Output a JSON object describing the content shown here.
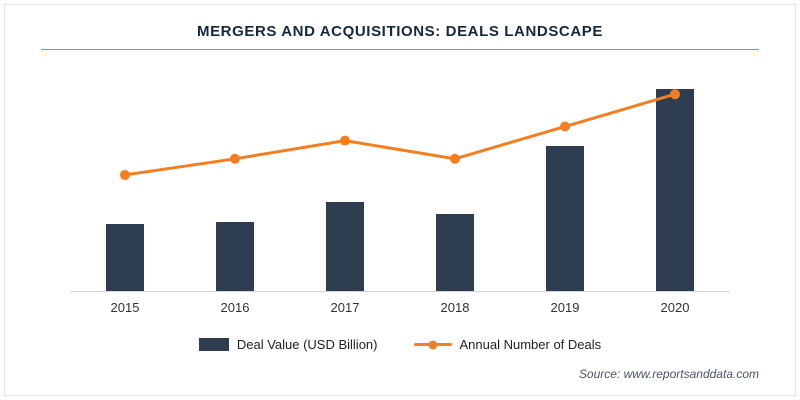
{
  "source": "Source: www.reportsanddata.com",
  "chart_data": {
    "type": "bar",
    "subtype": "combo-bar-line",
    "title": "MERGERS AND ACQUISITIONS: DEALS LANDSCAPE",
    "categories": [
      "2015",
      "2016",
      "2017",
      "2018",
      "2019",
      "2020"
    ],
    "series": [
      {
        "name": "Deal Value (USD Billion)",
        "type": "bar",
        "color": "#2e3d50",
        "values": [
          33,
          34,
          44,
          38,
          72,
          100
        ]
      },
      {
        "name": "Annual Number of Deals",
        "type": "line",
        "color": "#f57e20",
        "values": [
          58,
          66,
          75,
          66,
          82,
          98
        ]
      }
    ],
    "xlabel": "",
    "ylabel": "",
    "ylim": [
      0,
      110
    ],
    "y_axis_visible": false,
    "gridlines": false,
    "legend_position": "bottom",
    "divider_color": "#c97f3e",
    "axis_line_color": "#d5d5d5"
  }
}
